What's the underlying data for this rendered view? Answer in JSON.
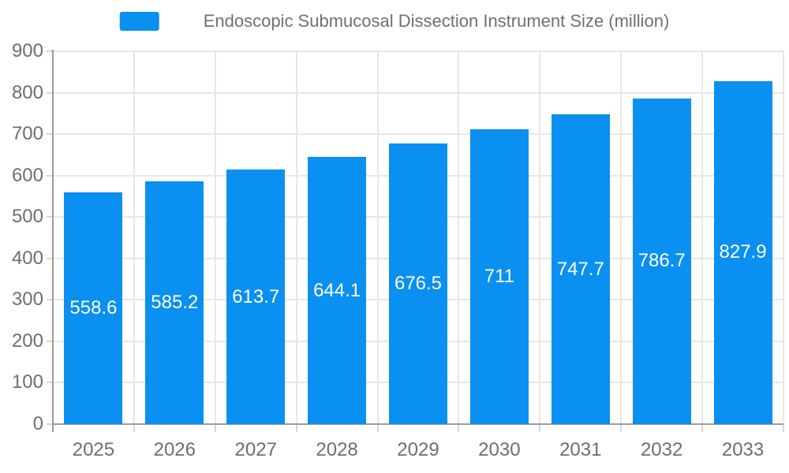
{
  "chart_data": {
    "type": "bar",
    "title": "Endoscopic Submucosal Dissection Instrument Size (million)",
    "categories": [
      "2025",
      "2026",
      "2027",
      "2028",
      "2029",
      "2030",
      "2031",
      "2032",
      "2033"
    ],
    "values": [
      558.6,
      585.2,
      613.7,
      644.1,
      676.5,
      711,
      747.7,
      786.7,
      827.9
    ],
    "value_labels": [
      "558.6",
      "585.2",
      "613.7",
      "644.1",
      "676.5",
      "711",
      "747.7",
      "786.7",
      "827.9"
    ],
    "xlabel": "",
    "ylabel": "",
    "ylim": [
      0,
      900
    ],
    "ytick_step": 100,
    "yticks": [
      "0",
      "100",
      "200",
      "300",
      "400",
      "500",
      "600",
      "700",
      "800",
      "900"
    ],
    "grid": true,
    "legend_position": "top",
    "colors": {
      "bar": "#0a90f0",
      "value_label": "#ffffff",
      "title_text": "#707070",
      "axis_text": "#6e6e6e",
      "grid_line": "#e7e7e7",
      "axis_line": "#9c9c9c",
      "tick_mark": "#d6d6d6",
      "background": "#ffffff"
    }
  }
}
